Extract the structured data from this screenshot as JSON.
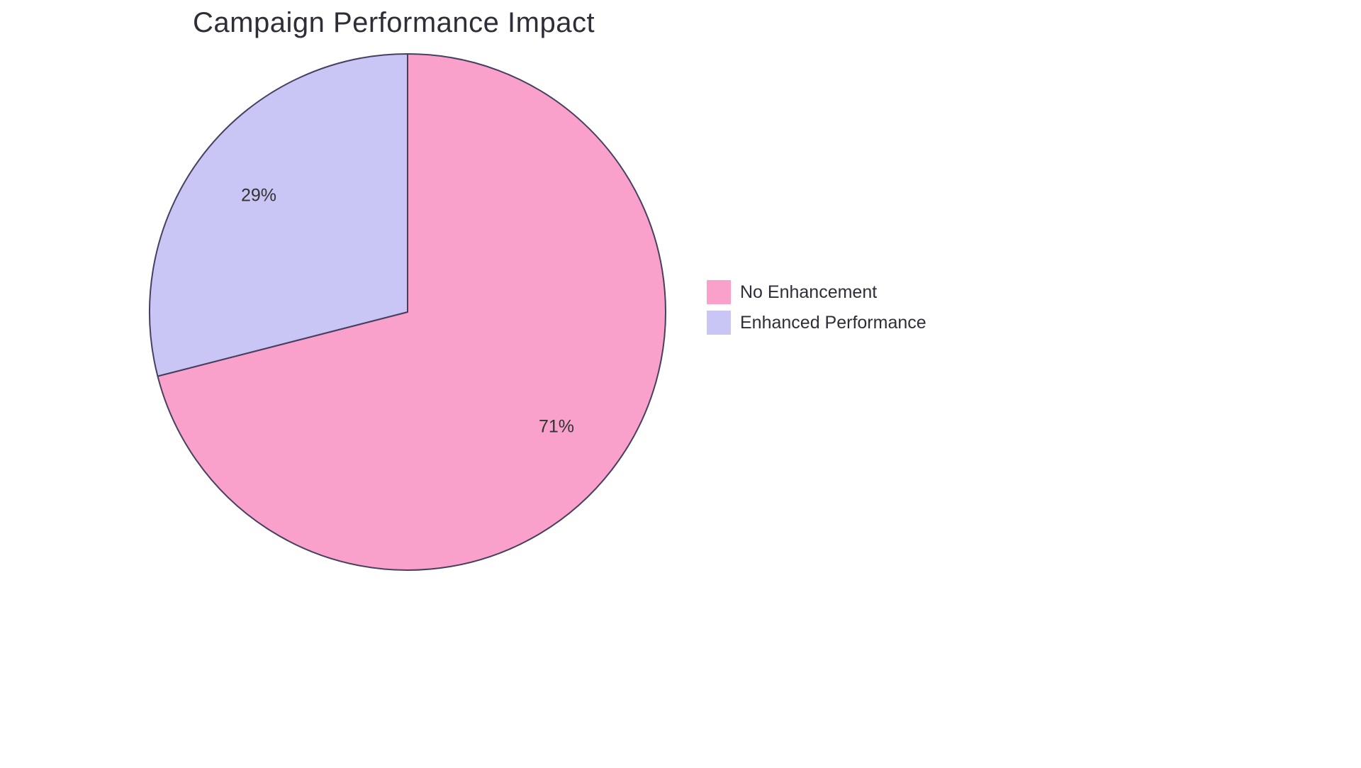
{
  "chart_data": {
    "type": "pie",
    "title": "Campaign Performance Impact",
    "slices": [
      {
        "label": "No Enhancement",
        "value": 71,
        "display": "71%",
        "color": "#F9A0CB"
      },
      {
        "label": "Enhanced Performance",
        "value": 29,
        "display": "29%",
        "color": "#C9C5F4"
      }
    ],
    "start_angle_deg": 0,
    "direction": "clockwise",
    "stroke_color": "#454060",
    "label_color": "#333333",
    "legend_position": "right",
    "background": "#FFFFFF"
  }
}
